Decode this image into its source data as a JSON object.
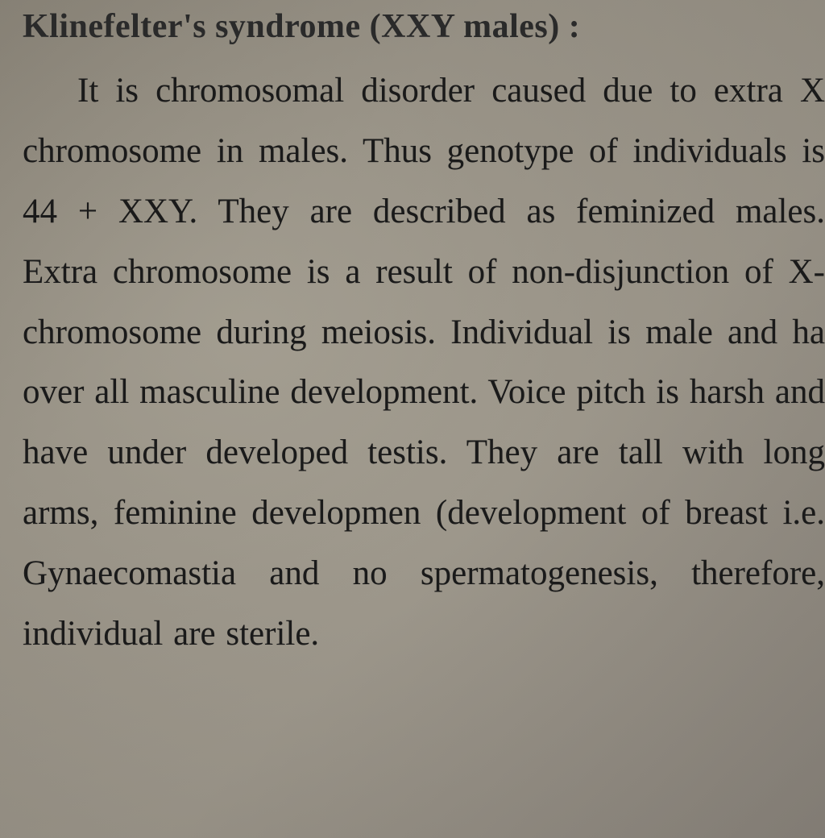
{
  "document": {
    "heading": "Klinefelter's syndrome (XXY males) :",
    "paragraph_indent": "      ",
    "body": "It is chromosomal disorder caused due to extra X chromosome in males. Thus genotype of individuals is 44 + XXY. They are described as feminized males. Extra chromosome is a result of non-disjunction of X-chromosome during meiosis. Individual is male and ha over all masculine development. Voice pitch is harsh and have under developed testis. They are tall with long arms, feminine developmen (development of breast i.e. Gynaecomastia and no spermatogenesis, therefore, individual are sterile."
  },
  "style": {
    "heading_fontsize": 42,
    "heading_color": "#2a2a2a",
    "body_fontsize": 43,
    "body_color": "#1a1a1a",
    "line_height": 1.74,
    "indent_width": 68,
    "background_base": "#948e82",
    "text_shadow": "0 0 1px rgba(0,0,0,0.1)"
  }
}
